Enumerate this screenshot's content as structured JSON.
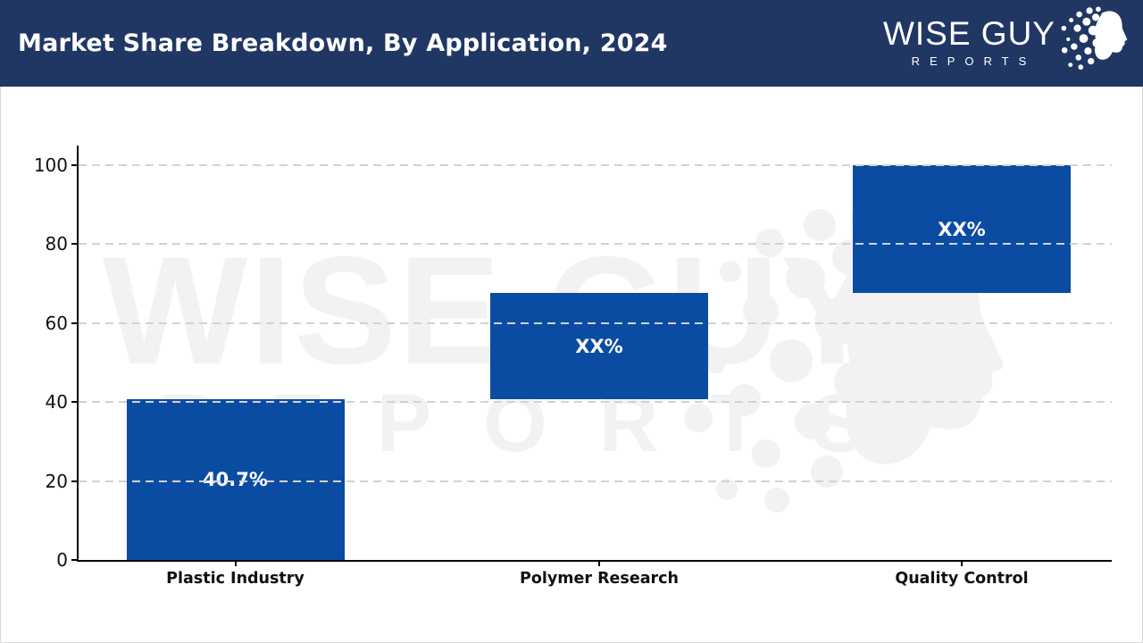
{
  "header": {
    "title": "Market Share Breakdown, By Application, 2024",
    "logo": {
      "line1": "WISE GUY",
      "line2": "REPORTS"
    }
  },
  "watermark": {
    "line1": "WISE GUY",
    "line2": "REPORTS"
  },
  "chart_data": {
    "type": "bar",
    "variant": "waterfall-floating-bars",
    "title": "Market Share Breakdown, By Application, 2024",
    "categories": [
      "Plastic Industry",
      "Polymer Research",
      "Quality Control"
    ],
    "bars": [
      {
        "category": "Plastic Industry",
        "start": 0,
        "end": 40.7,
        "label": "40.7%"
      },
      {
        "category": "Polymer Research",
        "start": 40.7,
        "end": 67.6,
        "label": "XX%"
      },
      {
        "category": "Quality Control",
        "start": 67.6,
        "end": 100,
        "label": "XX%"
      }
    ],
    "ylim": [
      0,
      100
    ],
    "yticks": [
      0,
      20,
      40,
      60,
      80,
      100
    ],
    "grid": "horizontal-dashed-over-bars",
    "legend": "none",
    "bar_color": "#0b4ca3",
    "value_label_color": "#ffffff",
    "header_color": "#203764",
    "gridline_color": "#d2d2d2",
    "watermark_color": "#f2f2f4"
  }
}
